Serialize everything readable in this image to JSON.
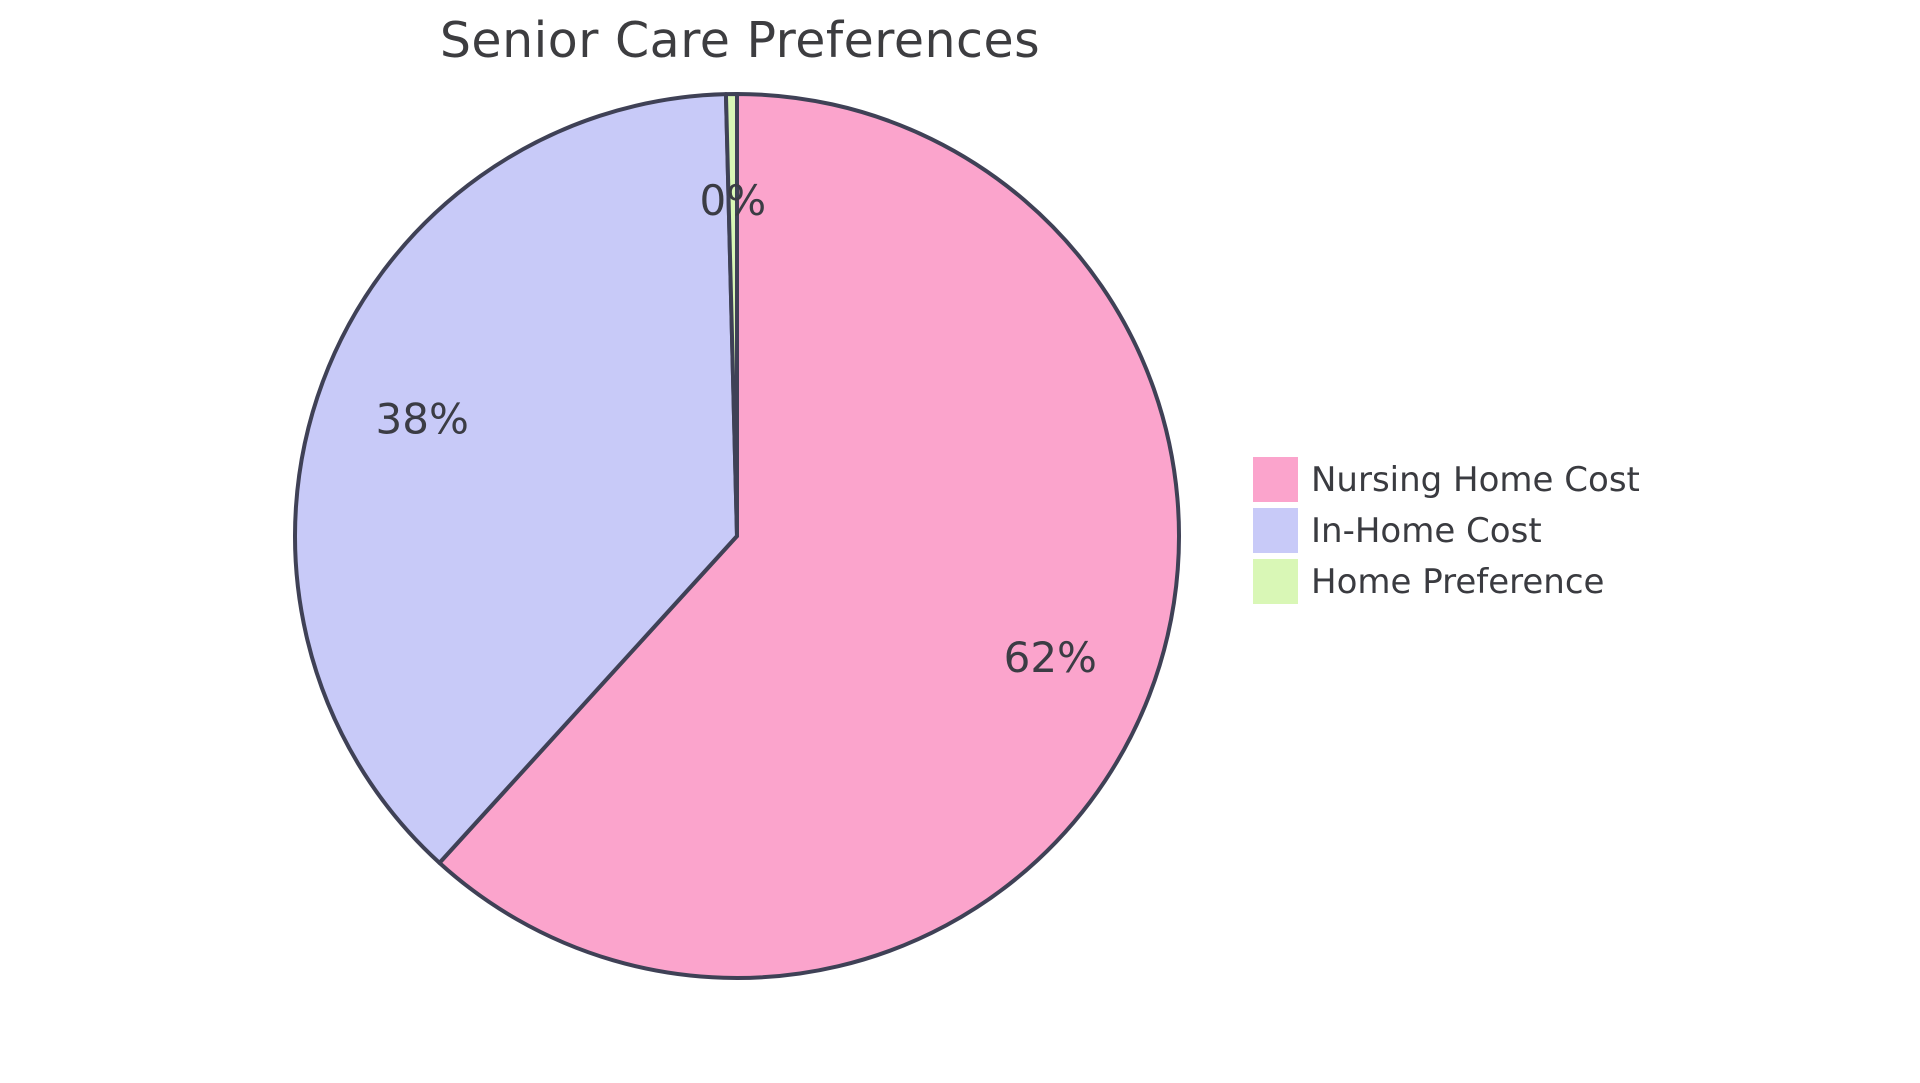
{
  "chart_data": {
    "type": "pie",
    "title": "Senior Care Preferences",
    "labels": [
      "Nursing Home Cost",
      "In-Home Cost",
      "Home Preference"
    ],
    "values": [
      62,
      38,
      0.4
    ],
    "percent_labels": [
      "62%",
      "38%",
      "0%"
    ],
    "colors": [
      "#FBA4CC",
      "#C8CAF8",
      "#D9F7B6"
    ],
    "slice_border_color": "#3F4156",
    "label_text_color": "#3b3c44",
    "title_text_color": "#3d3d40",
    "legend_position": "right",
    "start_angle_deg": 0,
    "direction": "clockwise",
    "legend_entries": [
      "Nursing Home Cost",
      "In-Home Cost",
      "Home Preference"
    ]
  }
}
